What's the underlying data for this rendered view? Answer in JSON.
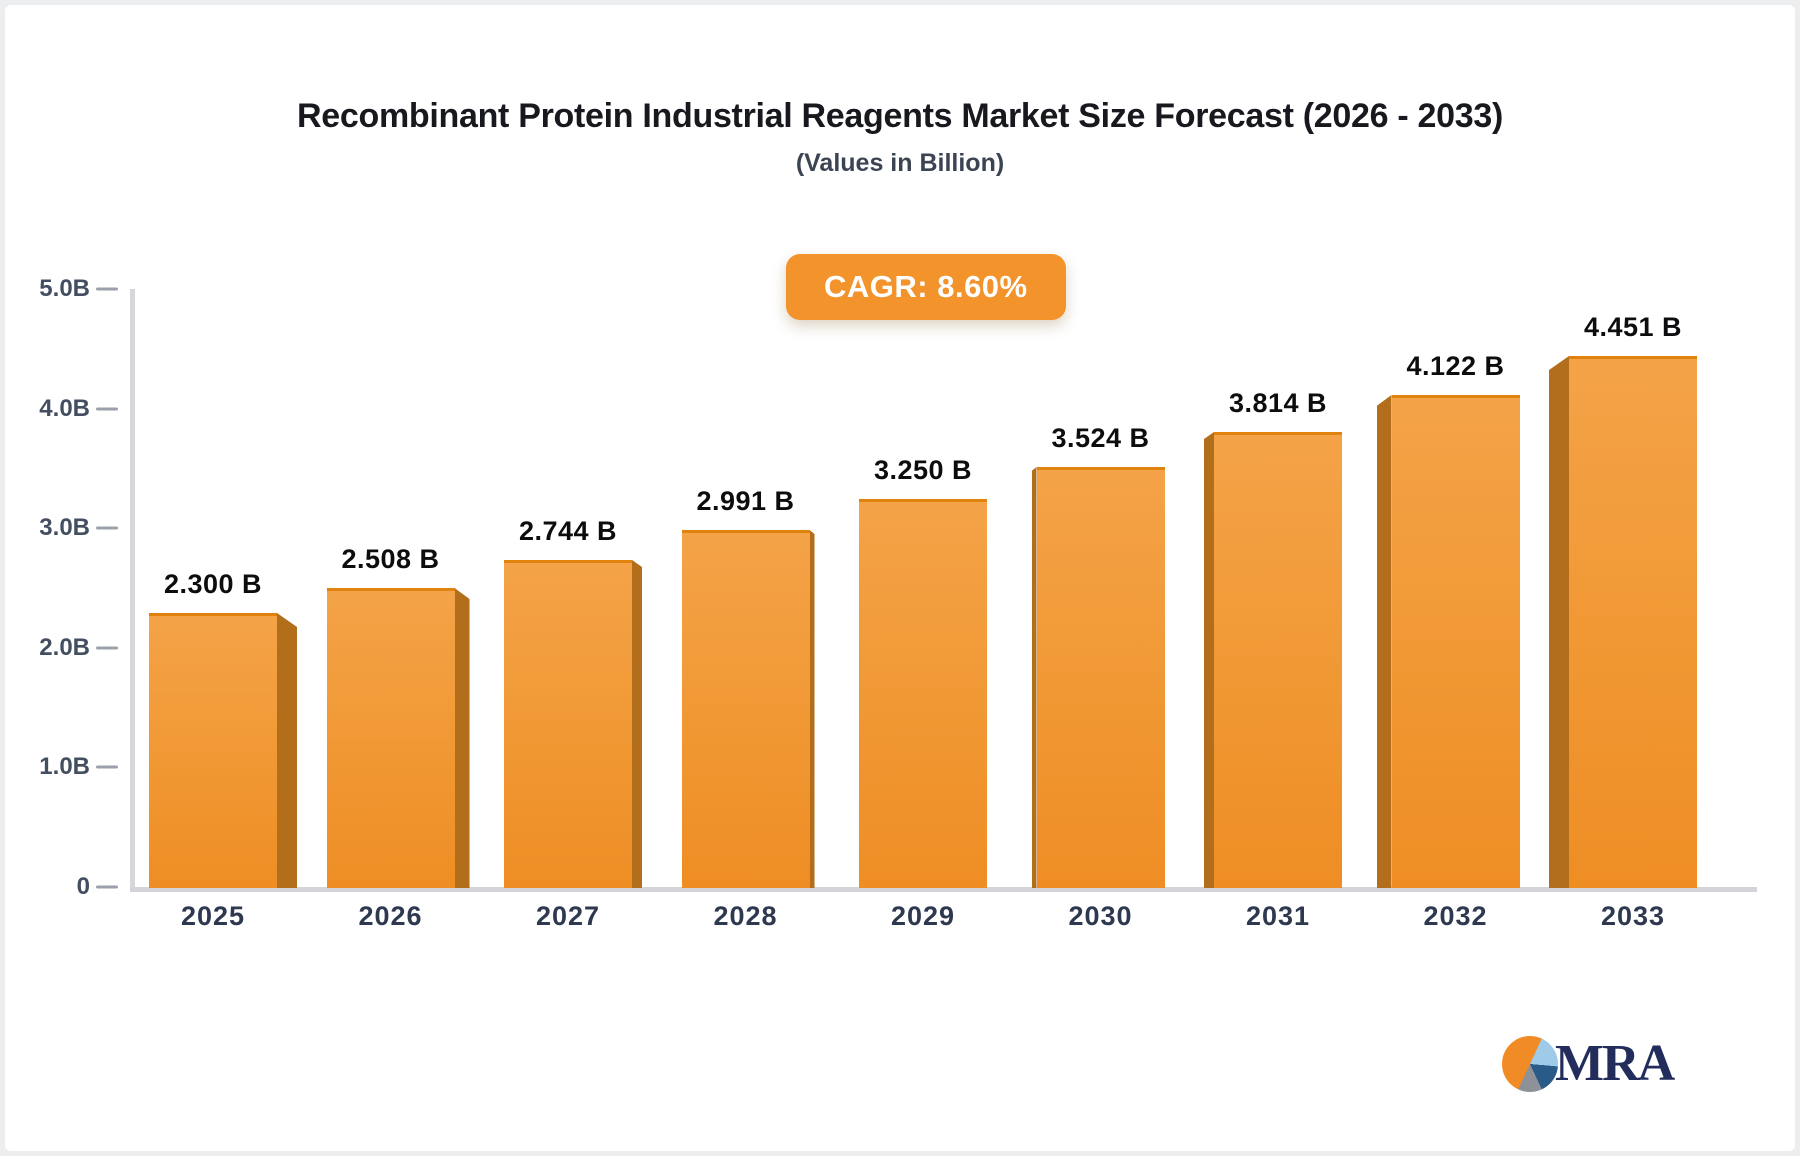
{
  "title": "Recombinant Protein Industrial Reagents Market Size Forecast (2026 - 2033)",
  "subtitle": "(Values in Billion)",
  "badge": {
    "label": "CAGR: 8.60%",
    "bg_color": "#F2932C",
    "text_color": "#FFFFFF"
  },
  "chart_data": {
    "type": "bar",
    "categories": [
      "2025",
      "2026",
      "2027",
      "2028",
      "2029",
      "2030",
      "2031",
      "2032",
      "2033"
    ],
    "values": [
      2.3,
      2.508,
      2.744,
      2.991,
      3.25,
      3.524,
      3.814,
      4.122,
      4.451
    ],
    "value_labels": [
      "2.300 B",
      "2.508 B",
      "2.744 B",
      "2.991 B",
      "3.250 B",
      "3.524 B",
      "3.814 B",
      "4.122 B",
      "4.451 B"
    ],
    "title": "Recombinant Protein Industrial Reagents Market Size Forecast (2026 - 2033)",
    "subtitle": "(Values in Billion)",
    "annotation": "CAGR: 8.60%",
    "xlabel": "",
    "ylabel": "",
    "ylim": [
      0,
      5
    ],
    "ytick_labels_top_to_bottom": [
      "5.0B",
      "4.0B",
      "3.0B",
      "2.0B",
      "1.0B",
      "0"
    ],
    "grid": false,
    "legend_position": "none",
    "bar_style": "3d-perspective-center-vanishing",
    "colors": {
      "bar_face": "#F09732",
      "bar_face_top_border": "#E0820E",
      "bar_side_shadow": "#B26E1B",
      "axis_line": "#D2D4D8",
      "tick_dash": "#9AA1AB",
      "y_label": "#434E60",
      "x_label": "#2E3950",
      "value_label": "#0D0D0F",
      "title": "#17191E",
      "subtitle": "#3C4454"
    }
  },
  "logo": {
    "text": "MRA",
    "pie_icon_colors": {
      "orange": "#F08B26",
      "sky_blue": "#9FCBE8",
      "navy": "#2A5A88",
      "gray": "#8E9298"
    },
    "text_color": "#232D5C"
  }
}
